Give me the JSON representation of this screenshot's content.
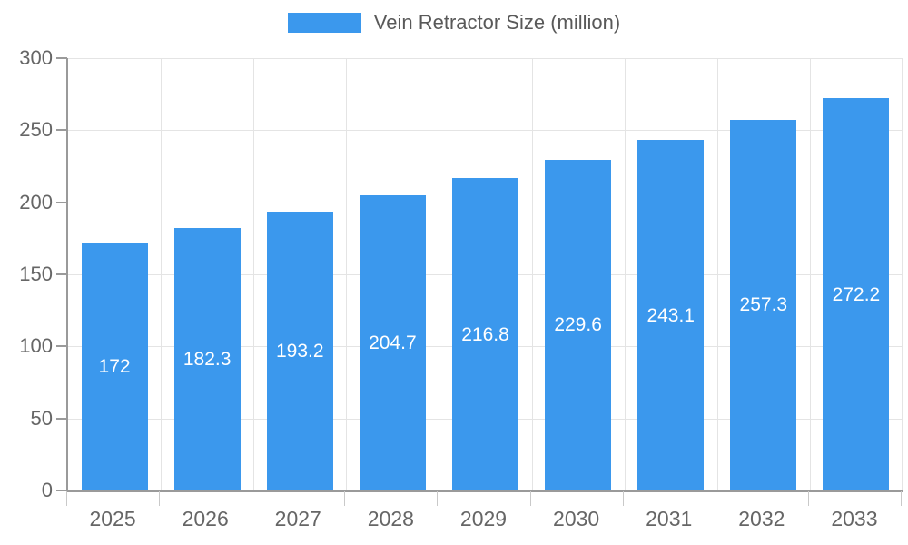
{
  "legend": {
    "label": "Vein Retractor Size (million)"
  },
  "chart_data": {
    "type": "bar",
    "title": "",
    "categories": [
      "2025",
      "2026",
      "2027",
      "2028",
      "2029",
      "2030",
      "2031",
      "2032",
      "2033"
    ],
    "series": [
      {
        "name": "Vein Retractor Size (million)",
        "values": [
          172,
          182.3,
          193.2,
          204.7,
          216.8,
          229.6,
          243.1,
          257.3,
          272.2
        ]
      }
    ],
    "xlabel": "",
    "ylabel": "",
    "ylim": [
      0,
      300
    ],
    "yticks": [
      0,
      50,
      100,
      150,
      200,
      250,
      300
    ],
    "grid": true,
    "legend_position": "top",
    "value_labels_inside_bars": true,
    "colors": {
      "bar": "#3b98ed",
      "value_label": "#ffffff",
      "gridline": "#e4e4e4",
      "axis_line": "#9a9a9a",
      "tick_label": "#666666",
      "legend_text": "#595959",
      "background": "#ffffff"
    }
  }
}
